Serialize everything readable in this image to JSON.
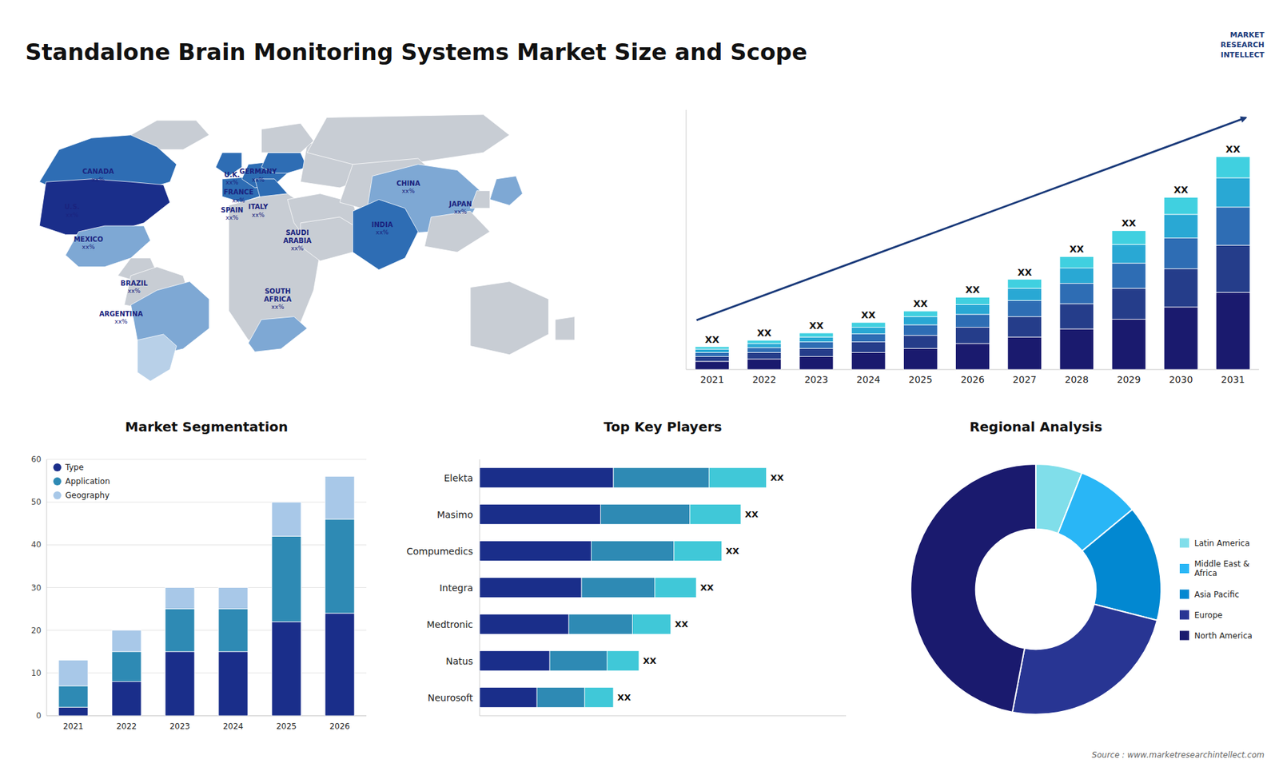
{
  "chart_data": [
    {
      "type": "header",
      "title": "Standalone Brain Monitoring Systems Market Size and Scope",
      "annotations": [
        "MARKET",
        "RESEARCH",
        "INTELLECT",
        "Source : www.marketresearchintellect.com"
      ]
    },
    {
      "type": "map",
      "categories": [
        "CANADA",
        "U.S.",
        "MEXICO",
        "BRAZIL",
        "ARGENTINA",
        "U.K.",
        "FRANCE",
        "SPAIN",
        "GERMANY",
        "ITALY",
        "SAUDI\nARABIA",
        "SOUTH\nAFRICA",
        "CHINA",
        "INDIA",
        "JAPAN"
      ],
      "annotations": [
        "xx%",
        "xx%",
        "xx%",
        "xx%",
        "xx%",
        "xx%",
        "xx%",
        "xx%",
        "xx%",
        "xx%",
        "xx%",
        "xx%",
        "xx%",
        "xx%",
        "xx%"
      ]
    },
    {
      "type": "bar",
      "stacked": true,
      "categories": [
        "2021",
        "2022",
        "2023",
        "2024",
        "2025",
        "2026",
        "2027",
        "2028",
        "2029",
        "2030",
        "2031"
      ],
      "series": [
        {
          "color": "#1a1a6e",
          "values": [
            1.0,
            1.3,
            1.6,
            2.1,
            2.6,
            3.2,
            4.0,
            5.0,
            6.2,
            7.7,
            9.5
          ]
        },
        {
          "color": "#253d8a",
          "values": [
            0.6,
            0.8,
            1.0,
            1.3,
            1.6,
            2.0,
            2.5,
            3.1,
            3.8,
            4.7,
            5.8
          ]
        },
        {
          "color": "#2e6db4",
          "values": [
            0.5,
            0.6,
            0.8,
            1.0,
            1.3,
            1.6,
            2.0,
            2.5,
            3.1,
            3.8,
            4.7
          ]
        },
        {
          "color": "#29a8d4",
          "values": [
            0.4,
            0.5,
            0.6,
            0.8,
            1.0,
            1.2,
            1.5,
            1.9,
            2.3,
            2.9,
            3.6
          ]
        },
        {
          "color": "#40d0e0",
          "values": [
            0.3,
            0.4,
            0.5,
            0.6,
            0.7,
            0.9,
            1.1,
            1.4,
            1.7,
            2.1,
            2.6
          ]
        }
      ],
      "ylim": [
        0,
        31.964
      ],
      "tick_labels": "x",
      "annotations": [
        "XX",
        "XX",
        "XX",
        "XX",
        "XX",
        "XX",
        "XX",
        "XX",
        "XX",
        "XX",
        "XX"
      ]
    },
    {
      "type": "bar",
      "title": "Market Segmentation",
      "stacked": true,
      "categories": [
        "2021",
        "2022",
        "2023",
        "2024",
        "2025",
        "2026"
      ],
      "series": [
        {
          "name": "Type",
          "color": "#1a2e8a",
          "values": [
            2,
            8,
            15,
            15,
            22,
            24
          ]
        },
        {
          "name": "Application",
          "color": "#2e8ab4",
          "values": [
            5,
            7,
            10,
            10,
            20,
            22
          ]
        },
        {
          "name": "Geography",
          "color": "#a8c8e8",
          "values": [
            6,
            5,
            5,
            5,
            8,
            10
          ]
        }
      ],
      "ylim": [
        0,
        60
      ],
      "yticks": [
        0,
        10,
        20,
        30,
        40,
        50,
        60
      ],
      "grid": true,
      "legend": "upper left"
    },
    {
      "type": "bar",
      "title": "Top Key Players",
      "orientation": "horizontal",
      "stacked": true,
      "categories": [
        "Elekta",
        "Masimo",
        "Compumedics",
        "Integra",
        "Medtronic",
        "Natus",
        "Neurosoft"
      ],
      "series": [
        {
          "color": "#1a2e8a",
          "values": [
            0.42,
            0.38,
            0.35,
            0.32,
            0.28,
            0.22,
            0.18
          ]
        },
        {
          "color": "#2e8ab4",
          "values": [
            0.3,
            0.28,
            0.26,
            0.23,
            0.2,
            0.18,
            0.15
          ]
        },
        {
          "color": "#40c8d8",
          "values": [
            0.18,
            0.16,
            0.15,
            0.13,
            0.12,
            0.1,
            0.09
          ]
        }
      ],
      "xlim": [
        0,
        1.15
      ],
      "tick_labels": "y",
      "annotations": [
        "XX",
        "XX",
        "XX",
        "XX",
        "XX",
        "XX",
        "XX"
      ]
    },
    {
      "type": "pie",
      "title": "Regional Analysis",
      "categories": [
        "Latin America",
        "Middle East &\nAfrica",
        "Asia Pacific",
        "Europe",
        "North America"
      ],
      "values": [
        6,
        8,
        15,
        24,
        47
      ],
      "colors": [
        "#80deea",
        "#29b6f6",
        "#0288d1",
        "#283593",
        "#1a1a6e"
      ],
      "legend": "right"
    }
  ]
}
